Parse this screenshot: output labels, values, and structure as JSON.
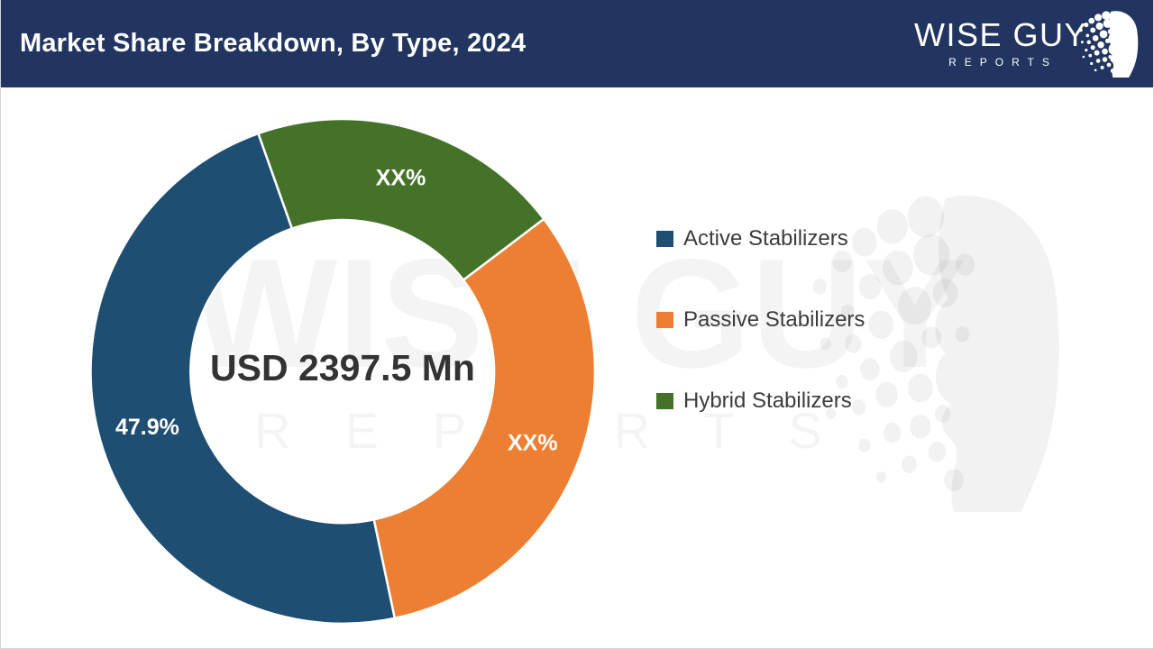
{
  "header": {
    "title": "Market Share Breakdown, By Type, 2024",
    "logo": {
      "name": "WISE GUY",
      "sub": "REPORTS"
    }
  },
  "watermark": {
    "line1": "WISE GUY",
    "line2": "REPORTS"
  },
  "chart_data": {
    "type": "pie",
    "subtype": "donut",
    "title": "Market Share Breakdown, By Type, 2024",
    "center_label": "USD 2397.5 Mn",
    "categories": [
      "Active Stabilizers",
      "Passive Stabilizers",
      "Hybrid Stabilizers"
    ],
    "values": [
      47.9,
      32.0,
      20.1
    ],
    "display_labels": [
      "47.9%",
      "XX%",
      "XX%"
    ],
    "colors": [
      "#1f4e73",
      "#ed7f33",
      "#447229"
    ],
    "start_angle_deg": 109.5,
    "direction": "counterclockwise",
    "inner_radius_ratio": 0.6,
    "legend_position": "right"
  },
  "legend": {
    "items": [
      {
        "label": "Active Stabilizers",
        "color": "#1f4e73"
      },
      {
        "label": "Passive Stabilizers",
        "color": "#ed7f33"
      },
      {
        "label": "Hybrid Stabilizers",
        "color": "#447229"
      }
    ]
  },
  "colors": {
    "header_bg": "#213560",
    "slice_label_text": "#ffffff",
    "center_text": "#333333",
    "legend_text": "#3c3c3c"
  }
}
